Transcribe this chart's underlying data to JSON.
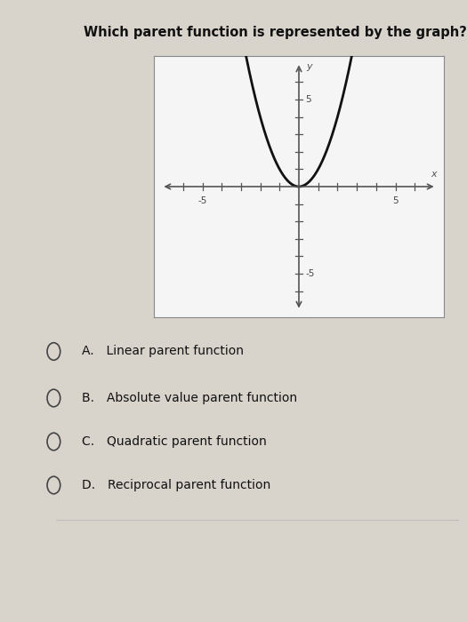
{
  "title": "Which parent function is represented by the graph?",
  "title_fontsize": 10.5,
  "bg_color": "#d8d4cc",
  "graph_bg_color": "#ccd8cc",
  "graph_inner_color": "#f5f5f5",
  "curve_color": "#111111",
  "axis_color": "#555555",
  "tick_label_color": "#444444",
  "xlim": [
    -7.5,
    7.5
  ],
  "ylim": [
    -7.5,
    7.5
  ],
  "options": [
    "A. Linear parent function",
    "B. Absolute value parent function",
    "C. Quadratic parent function",
    "D. Reciprocal parent function"
  ],
  "option_fontsize": 10,
  "curve_linewidth": 2.0,
  "curve_xmin": -3.5,
  "curve_xmax": 3.5
}
